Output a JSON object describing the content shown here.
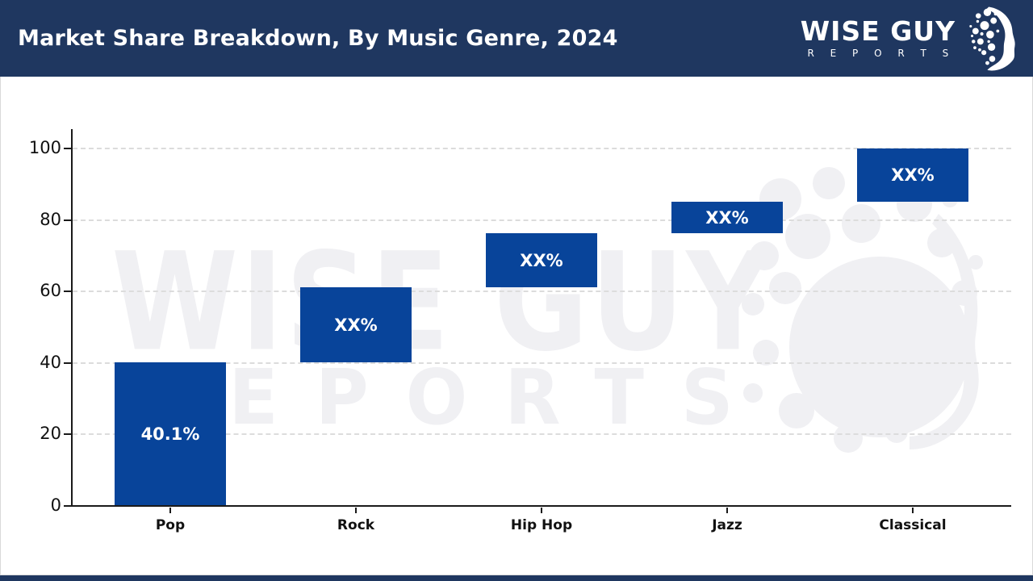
{
  "page": {
    "background": "#FFFFFF",
    "border_color": "#D9D9D9"
  },
  "header": {
    "background": "#1F3760",
    "title": "Market Share Breakdown, By Music Genre, 2024",
    "logo": {
      "name": "WISE GUY",
      "sub": "R E P O R T S"
    }
  },
  "watermark": {
    "line1": "WISE GUY",
    "line2": "REPORTS"
  },
  "footer": {
    "background": "#1F3760"
  },
  "chart_data": {
    "type": "bar",
    "subtype": "waterfall",
    "title": "Market Share Breakdown, By Music Genre, 2024",
    "categories": [
      "Pop",
      "Rock",
      "Hip Hop",
      "Jazz",
      "Classical"
    ],
    "segments": [
      {
        "category": "Pop",
        "start": 0,
        "end": 40.1,
        "label": "40.1%"
      },
      {
        "category": "Rock",
        "start": 40.1,
        "end": 61.2,
        "label": "XX%"
      },
      {
        "category": "Hip Hop",
        "start": 61.2,
        "end": 76.2,
        "label": "XX%"
      },
      {
        "category": "Jazz",
        "start": 76.2,
        "end": 85.0,
        "label": "XX%"
      },
      {
        "category": "Classical",
        "start": 85.0,
        "end": 100.0,
        "label": "XX%"
      }
    ],
    "values_displayed": [
      "40.1%",
      "XX%",
      "XX%",
      "XX%",
      "XX%"
    ],
    "xlabel": "",
    "ylabel": "",
    "ylim": [
      0,
      100
    ],
    "yticks": [
      0,
      20,
      40,
      60,
      80,
      100
    ],
    "grid": "horizontal-dashed",
    "legend": "none",
    "bar_color": "#08449A",
    "bar_label_color": "#FFFFFF",
    "axis_color": "#1A1A1A",
    "gridline_color": "#DCDCDC"
  }
}
